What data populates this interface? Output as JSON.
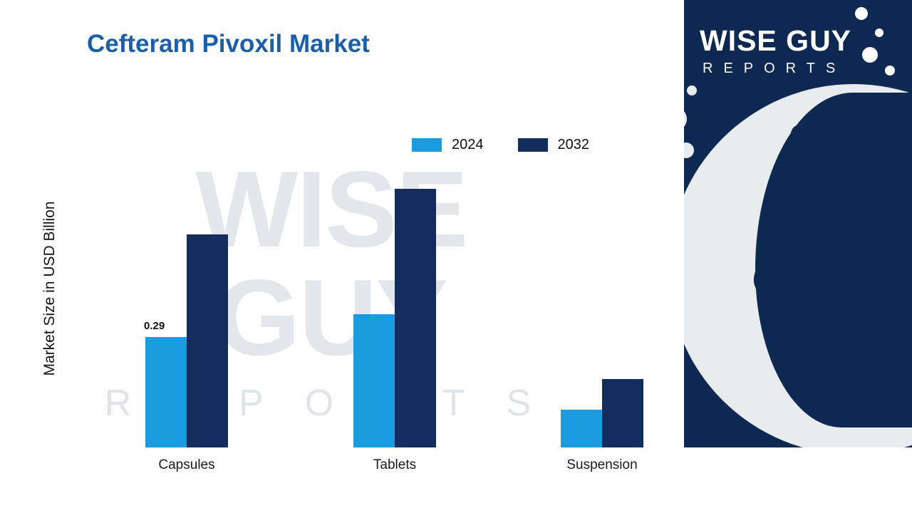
{
  "page": {
    "title": "Cefteram Pivoxil Market"
  },
  "logo": {
    "line1": "WISE GUY",
    "line2": "REPORTS"
  },
  "watermark": {
    "line1": "WISE GUY",
    "line2": "REPORTS"
  },
  "chart_data": {
    "type": "bar",
    "title": "Cefteram Pivoxil Market",
    "xlabel": "",
    "ylabel": "Market Size in USD Billion",
    "categories": [
      "Capsules",
      "Tablets",
      "Suspension"
    ],
    "series": [
      {
        "name": "2024",
        "color": "#1b9ce0",
        "values": [
          0.29,
          0.35,
          0.1
        ]
      },
      {
        "name": "2032",
        "color": "#122d5e",
        "values": [
          0.56,
          0.68,
          0.18
        ]
      }
    ],
    "ylim": [
      0,
      0.75
    ],
    "grid": false,
    "legend_position": "top",
    "data_labels": [
      {
        "category": "Capsules",
        "series": "2024",
        "text": "0.29"
      }
    ]
  },
  "colors": {
    "title_blue": "#1c5fa9",
    "accent_light_blue": "#1b9ce0",
    "accent_navy": "#122d5e",
    "panel_navy": "#0e2951",
    "watermark_gray": "#e3e6ea"
  }
}
